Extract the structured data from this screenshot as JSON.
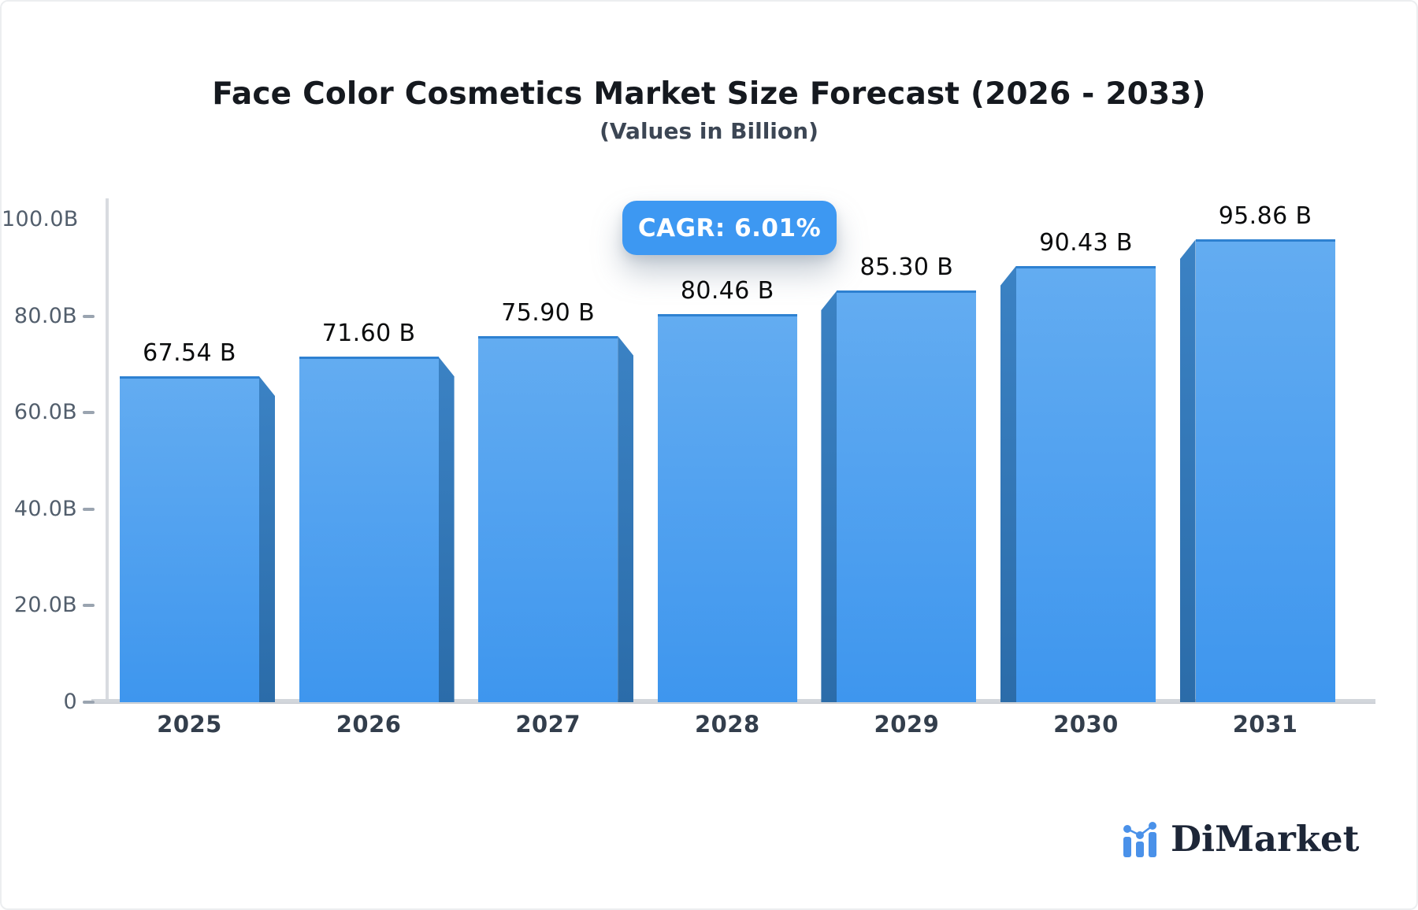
{
  "header": {
    "title": "Face Color Cosmetics Market Size Forecast (2026 - 2033)",
    "subtitle": "(Values in Billion)"
  },
  "badge": {
    "label": "CAGR: 6.01%"
  },
  "chart_data": {
    "type": "bar",
    "title": "Face Color Cosmetics Market Size Forecast (2026 - 2033)",
    "subtitle": "(Values in Billion)",
    "categories": [
      "2025",
      "2026",
      "2027",
      "2028",
      "2029",
      "2030",
      "2031"
    ],
    "values": [
      67.54,
      71.6,
      75.9,
      80.46,
      85.3,
      90.43,
      95.86
    ],
    "value_labels": [
      "67.54 B",
      "71.60 B",
      "75.90 B",
      "80.46 B",
      "85.30 B",
      "90.43 B",
      "95.86 B"
    ],
    "cagr_label": "CAGR: 6.01%",
    "xlabel": "",
    "ylabel": "",
    "ylim": [
      0,
      100
    ],
    "grid": false,
    "legend": "none",
    "yticks": [
      {
        "value": 100,
        "label": "100.0B",
        "dash": false
      },
      {
        "value": 80,
        "label": "80.0B",
        "dash": true
      },
      {
        "value": 60,
        "label": "60.0B",
        "dash": true
      },
      {
        "value": 40,
        "label": "40.0B",
        "dash": true
      },
      {
        "value": 20,
        "label": "20.0B",
        "dash": true
      },
      {
        "value": 0,
        "label": "0",
        "dash": true
      }
    ],
    "colors": {
      "bar_top": "#63acf1",
      "bar_bottom": "#3e96ee",
      "bar_edge": "#2e81d1",
      "bar_side_top": "#3b82c4",
      "bar_side_bottom": "#2b6ca9",
      "accent_badge": "#3d98f2",
      "axis": "#d5d8dd"
    }
  },
  "branding": {
    "logo_text": "DiMarket",
    "logo_icon": "bar-chart-icon",
    "icon_color": "#4a91e9",
    "text_color": "#1d2637"
  }
}
